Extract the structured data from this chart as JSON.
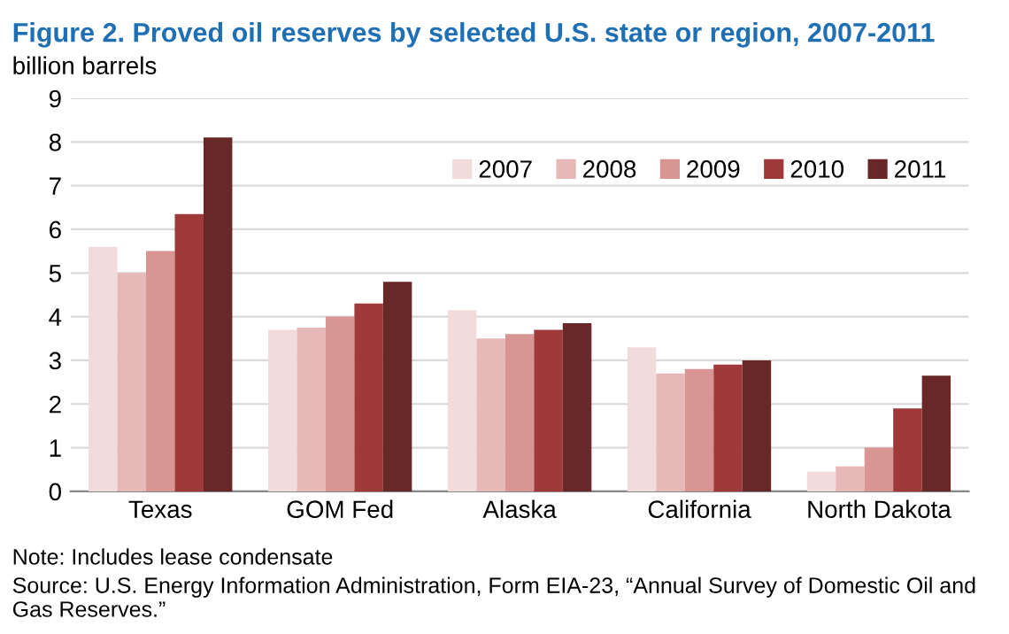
{
  "chart_data": {
    "type": "bar",
    "title": "Figure 2. Proved oil reserves by selected U.S. state or region, 2007-2011",
    "ylabel": "billion barrels",
    "categories": [
      "Texas",
      "GOM Fed",
      "Alaska",
      "California",
      "North Dakota"
    ],
    "series": [
      {
        "name": "2007",
        "color": "#f2dcdb",
        "values": [
          5.6,
          3.7,
          4.15,
          3.3,
          0.45
        ]
      },
      {
        "name": "2008",
        "color": "#e6b9b8",
        "values": [
          5.0,
          3.75,
          3.5,
          2.7,
          0.57
        ]
      },
      {
        "name": "2009",
        "color": "#d99594",
        "values": [
          5.5,
          4.0,
          3.6,
          2.8,
          1.0
        ]
      },
      {
        "name": "2010",
        "color": "#a0393a",
        "values": [
          6.35,
          4.3,
          3.7,
          2.9,
          1.9
        ]
      },
      {
        "name": "2011",
        "color": "#692828",
        "values": [
          8.1,
          4.8,
          3.85,
          3.0,
          2.65
        ]
      }
    ],
    "ylim": [
      0,
      9
    ],
    "yticks": [
      0,
      1,
      2,
      3,
      4,
      5,
      6,
      7,
      8,
      9
    ],
    "grid": "y",
    "legend": "top right",
    "annotations": [
      "Note: Includes lease condensate",
      "Source: U.S. Energy Information Administration, Form EIA-23, “Annual Survey of Domestic Oil and Gas Reserves.”"
    ]
  }
}
